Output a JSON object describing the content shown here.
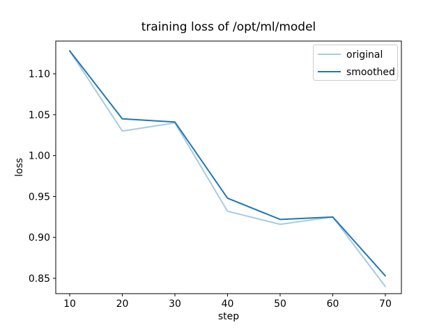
{
  "figure": {
    "background": "#ffffff",
    "spine_color": "#000000"
  },
  "chart_data": {
    "type": "line",
    "title": "training loss of /opt/ml/model",
    "xlabel": "step",
    "ylabel": "loss",
    "x": [
      10,
      20,
      30,
      40,
      50,
      60,
      70
    ],
    "series": [
      {
        "name": "original",
        "color": "#a8cbe2",
        "values": [
          1.128,
          1.03,
          1.04,
          0.932,
          0.916,
          0.925,
          0.84
        ]
      },
      {
        "name": "smoothed",
        "color": "#1f77b4",
        "values": [
          1.128,
          1.045,
          1.041,
          0.948,
          0.922,
          0.925,
          0.853
        ]
      }
    ],
    "xlim": [
      7.35,
      73.05
    ],
    "ylim": [
      0.8313,
      1.14
    ],
    "xticks": [
      10,
      20,
      30,
      40,
      50,
      60,
      70
    ],
    "yticks": [
      0.85,
      0.9,
      0.95,
      1.0,
      1.05,
      1.1
    ],
    "ytick_decimals": 2,
    "grid": false,
    "legend": {
      "position": "upper-right",
      "entries": [
        "original",
        "smoothed"
      ],
      "border_color": "#cccccc",
      "background": "#ffffff"
    }
  }
}
